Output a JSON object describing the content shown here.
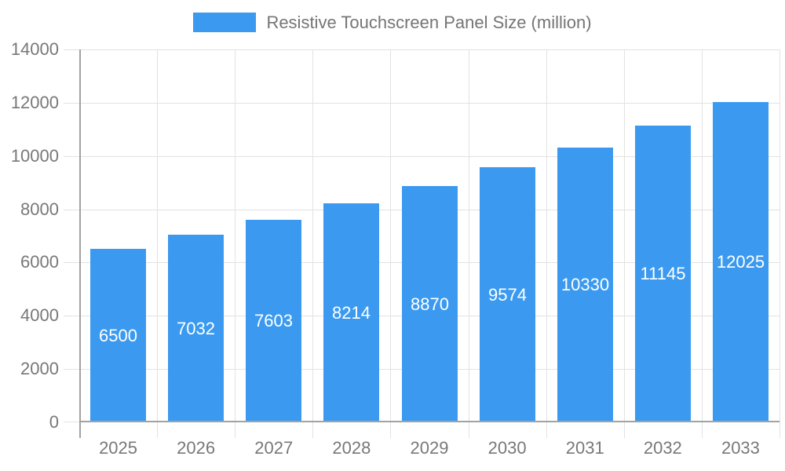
{
  "chart_data": {
    "type": "bar",
    "title": "",
    "legend": {
      "label": "Resistive Touchscreen Panel Size (million)",
      "position": "top-center"
    },
    "categories": [
      "2025",
      "2026",
      "2027",
      "2028",
      "2029",
      "2030",
      "2031",
      "2032",
      "2033"
    ],
    "series": [
      {
        "name": "Resistive Touchscreen Panel Size (million)",
        "values": [
          6500,
          7032,
          7603,
          8214,
          8870,
          9574,
          10330,
          11145,
          12025
        ]
      }
    ],
    "value_labels_inside_bars": [
      6500,
      7032,
      7603,
      8214,
      8870,
      9574,
      10330,
      11145,
      12025
    ],
    "xlabel": "",
    "ylabel": "",
    "ylim": [
      0,
      14000
    ],
    "yticks": [
      0,
      2000,
      4000,
      6000,
      8000,
      10000,
      12000,
      14000
    ],
    "grid": "horizontal and vertical light-gray gridlines",
    "colors": {
      "bar": "#3b9af0",
      "bar_value_label": "#ffffff",
      "axis_line": "#a2a2a2",
      "grid_line": "#e2e2e2",
      "tick_label": "#787878",
      "legend_text": "#757575",
      "background": "#ffffff"
    }
  }
}
